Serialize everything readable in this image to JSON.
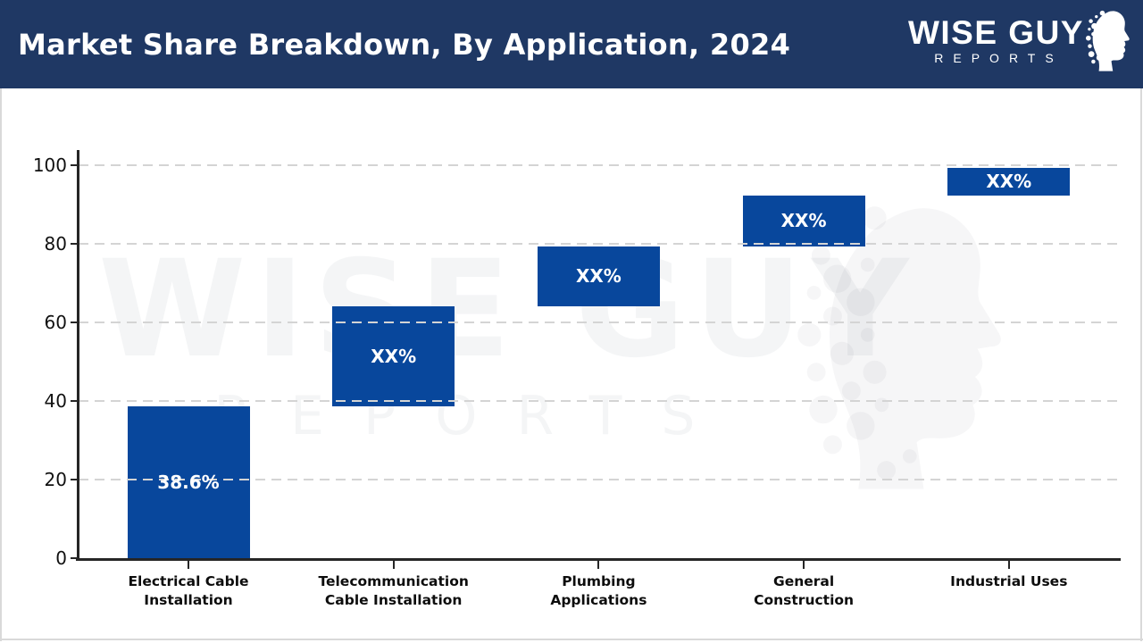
{
  "header": {
    "title": "Market Share Breakdown, By Application, 2024",
    "bg_color": "#1f3864",
    "logo": {
      "line1": "WISE GUY",
      "line2": "REPORTS"
    }
  },
  "watermark": {
    "line1": "WISE GUY",
    "line2": "REPORTS"
  },
  "chart_data": {
    "type": "bar",
    "subtype": "waterfall",
    "title": "Market Share Breakdown, By Application, 2024",
    "categories": [
      "Electrical Cable Installation",
      "Telecommunication Cable Installation",
      "Plumbing Applications",
      "General Construction",
      "Industrial Uses"
    ],
    "category_lines": [
      [
        "Electrical Cable",
        "Installation"
      ],
      [
        "Telecommunication",
        "Cable Installation"
      ],
      [
        "Plumbing",
        "Applications"
      ],
      [
        "General",
        "Construction"
      ],
      [
        "Industrial Uses"
      ]
    ],
    "segments": [
      {
        "start": 0,
        "end": 38.6,
        "label": "38.6%"
      },
      {
        "start": 38.6,
        "end": 64.1,
        "label": "XX%"
      },
      {
        "start": 64.1,
        "end": 79.4,
        "label": "XX%"
      },
      {
        "start": 79.4,
        "end": 92.3,
        "label": "XX%"
      },
      {
        "start": 92.3,
        "end": 99.3,
        "label": "XX%"
      }
    ],
    "bar_color": "#08479c",
    "bar_label_color": "#ffffff",
    "ylim": [
      0,
      100
    ],
    "yticks": [
      0,
      20,
      40,
      60,
      80,
      100
    ],
    "xlabel": "",
    "ylabel": "",
    "grid": "horizontal-dashed",
    "grid_color": "#d4d4d4",
    "axis_color": "#262626",
    "legend": "none"
  }
}
